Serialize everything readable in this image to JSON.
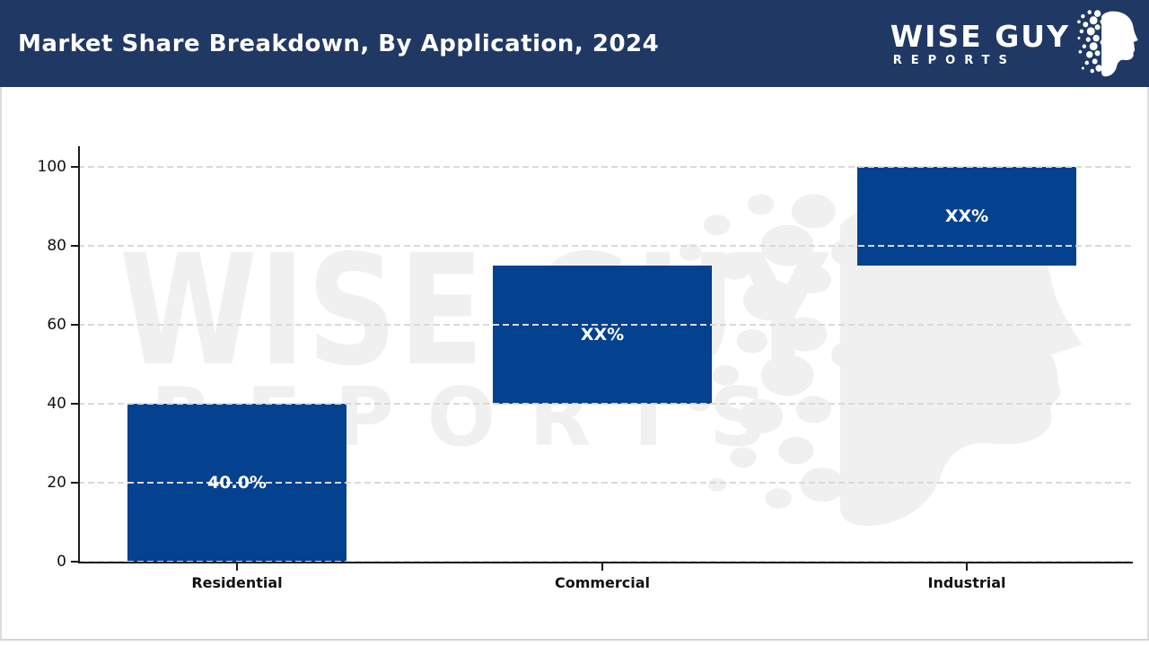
{
  "header": {
    "title": "Market Share Breakdown, By Application, 2024",
    "logo": {
      "line1": "WISE GUY",
      "line2": "REPORTS"
    }
  },
  "watermark": {
    "line1": "WISE GUY",
    "line2": "REPORTS"
  },
  "chart_data": {
    "type": "bar",
    "subtype": "floating segmented breakdown (waterfall-style market share)",
    "title": "Market Share Breakdown, By Application, 2024",
    "categories": [
      "Residential",
      "Commercial",
      "Industrial"
    ],
    "segments": [
      {
        "category": "Residential",
        "from": 0,
        "to": 40,
        "label": "40.0%"
      },
      {
        "category": "Commercial",
        "from": 40,
        "to": 75,
        "label": "XX%"
      },
      {
        "category": "Industrial",
        "from": 75,
        "to": 100,
        "label": "XX%"
      }
    ],
    "yticks": [
      0,
      20,
      40,
      60,
      80,
      100
    ],
    "ylim": [
      0,
      105
    ],
    "xlabel": "",
    "ylabel": "",
    "grid": "horizontal dashed gridlines drawn above bars",
    "legend": "none",
    "colors": {
      "bar": "#04418f",
      "bar_label": "#ffffff",
      "grid": "#d9d9d9",
      "axis": "#1a1a1a",
      "tick_label": "#111111"
    }
  },
  "colors": {
    "header_bg": "#203864",
    "page_bg": "#ffffff",
    "watermark": "#f0f0f1",
    "frame_border": "#d8d8d8"
  }
}
